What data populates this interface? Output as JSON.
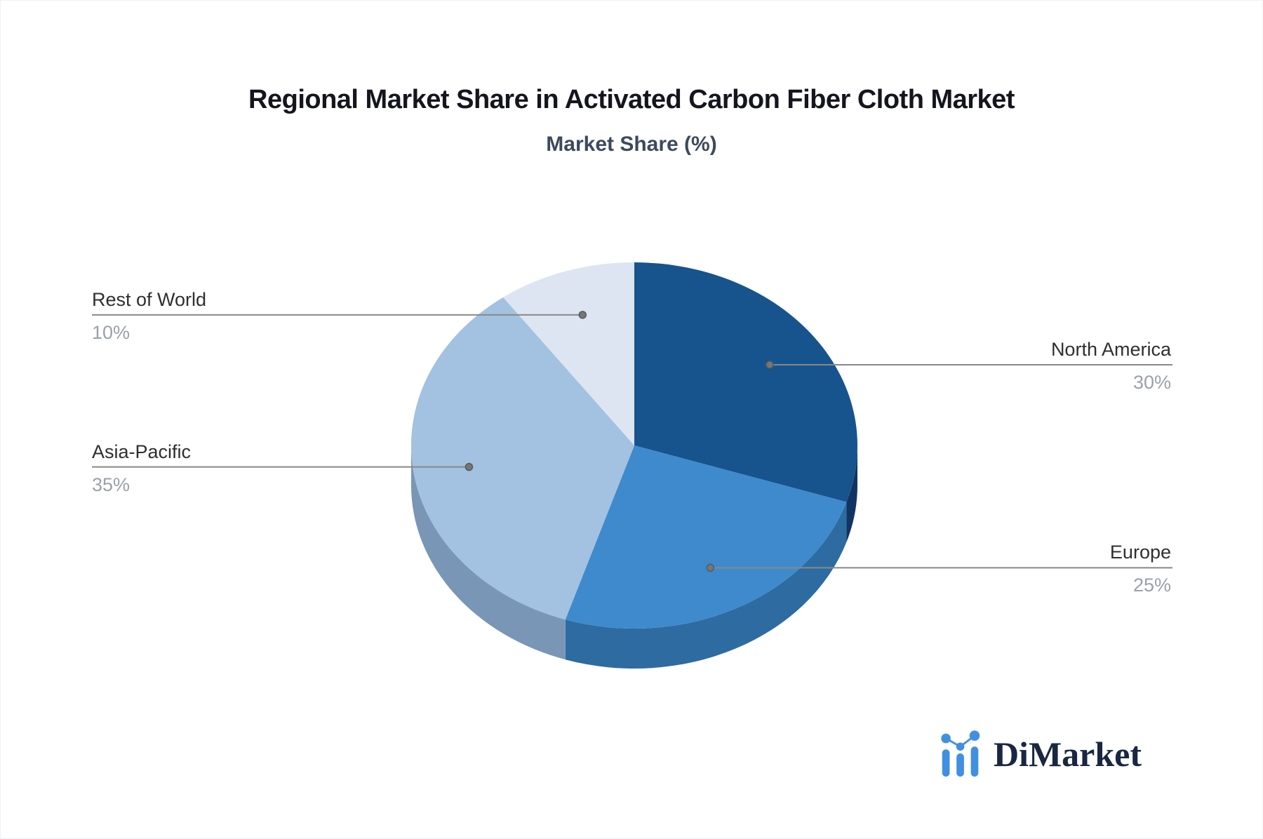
{
  "header": {
    "title": "Regional Market Share in Activated Carbon Fiber Cloth Market",
    "subtitle": "Market Share (%)"
  },
  "chart_data": {
    "type": "pie",
    "style": "3d-pie",
    "title": "Regional Market Share in Activated Carbon Fiber Cloth Market",
    "subtitle": "Market Share (%)",
    "unit": "%",
    "start_angle_deg": 0,
    "direction": "clockwise",
    "legend_position": "callout-labels",
    "slices": [
      {
        "label": "North America",
        "value": 30,
        "display": "30%",
        "color": "#17548E",
        "side_color": "#113462",
        "label_side": "right"
      },
      {
        "label": "Europe",
        "value": 25,
        "display": "25%",
        "color": "#3E8ACC",
        "side_color": "#2E6BA0",
        "label_side": "right"
      },
      {
        "label": "Asia-Pacific",
        "value": 35,
        "display": "35%",
        "color": "#A3C1E0",
        "side_color": "#7996B7",
        "label_side": "left"
      },
      {
        "label": "Rest of World",
        "value": 10,
        "display": "10%",
        "color": "#DCE5F1",
        "side_color": "#B9C6D8",
        "label_side": "left"
      }
    ],
    "leader_line_color": "#888888",
    "leader_dot_color": "#767676",
    "label_color": "#2f2f2f",
    "value_color": "#9ba1a9"
  },
  "branding": {
    "logo_text": "DiMarket",
    "logo_color": "#1a2742",
    "icon_color": "#4190E0",
    "icon_name": "bar-chart-logo-icon"
  }
}
